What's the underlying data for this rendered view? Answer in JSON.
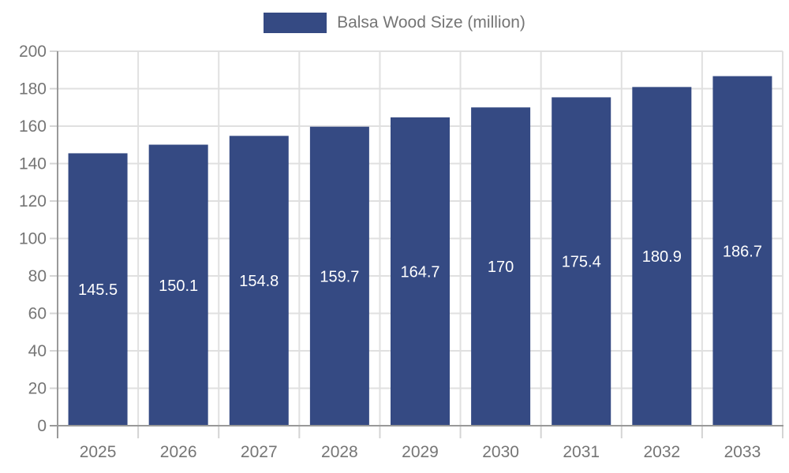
{
  "chart_data": {
    "type": "bar",
    "title": "Balsa Wood Size (million)",
    "legend": [
      "Balsa Wood Size (million)"
    ],
    "legend_position": "top",
    "categories": [
      "2025",
      "2026",
      "2027",
      "2028",
      "2029",
      "2030",
      "2031",
      "2032",
      "2033"
    ],
    "series": [
      {
        "name": "Balsa Wood Size (million)",
        "values": [
          145.5,
          150.1,
          154.8,
          159.7,
          164.7,
          170,
          175.4,
          180.9,
          186.7
        ],
        "data_labels": [
          "145.5",
          "150.1",
          "154.8",
          "159.7",
          "164.7",
          "170",
          "175.4",
          "180.9",
          "186.7"
        ]
      }
    ],
    "xlabel": "",
    "ylabel": "",
    "ylim": [
      0,
      200
    ],
    "ytick_step": 20,
    "ytick_labels": [
      "0",
      "20",
      "40",
      "60",
      "80",
      "100",
      "120",
      "140",
      "160",
      "180",
      "200"
    ],
    "grid": true,
    "colors": {
      "bar": "#354a83",
      "data_label": "#ffffff",
      "grid": "#e0e0e0",
      "tick": "#d4d4d4",
      "axis": "#999999",
      "text": "#757575",
      "background": "#ffffff"
    }
  }
}
